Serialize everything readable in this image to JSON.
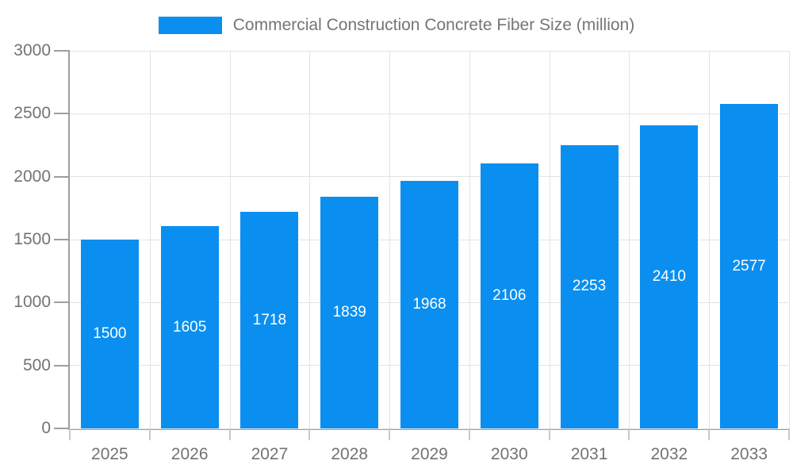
{
  "legend": {
    "label": "Commercial Construction Concrete Fiber Size (million)"
  },
  "chart_data": {
    "type": "bar",
    "title": "Commercial Construction Concrete Fiber Size (million)",
    "categories": [
      "2025",
      "2026",
      "2027",
      "2028",
      "2029",
      "2030",
      "2031",
      "2032",
      "2033"
    ],
    "values": [
      1500,
      1605,
      1718,
      1839,
      1968,
      2106,
      2253,
      2410,
      2577
    ],
    "xlabel": "",
    "ylabel": "",
    "ylim": [
      0,
      3000
    ],
    "yticks": [
      0,
      500,
      1000,
      1500,
      2000,
      2500,
      3000
    ],
    "grid": true,
    "legend_position": "top-center",
    "bar_labels_visible": true,
    "colors": {
      "bar": "#0a8ff0",
      "bar_label_text": "#ffffff",
      "legend_text": "#757575",
      "axis_label_text": "#737373",
      "axis_line": "#9e9e9e",
      "gridline": "#e3e3e3",
      "y_tick": "#9e9e9e",
      "x_tick": "#c9c9c9"
    }
  }
}
